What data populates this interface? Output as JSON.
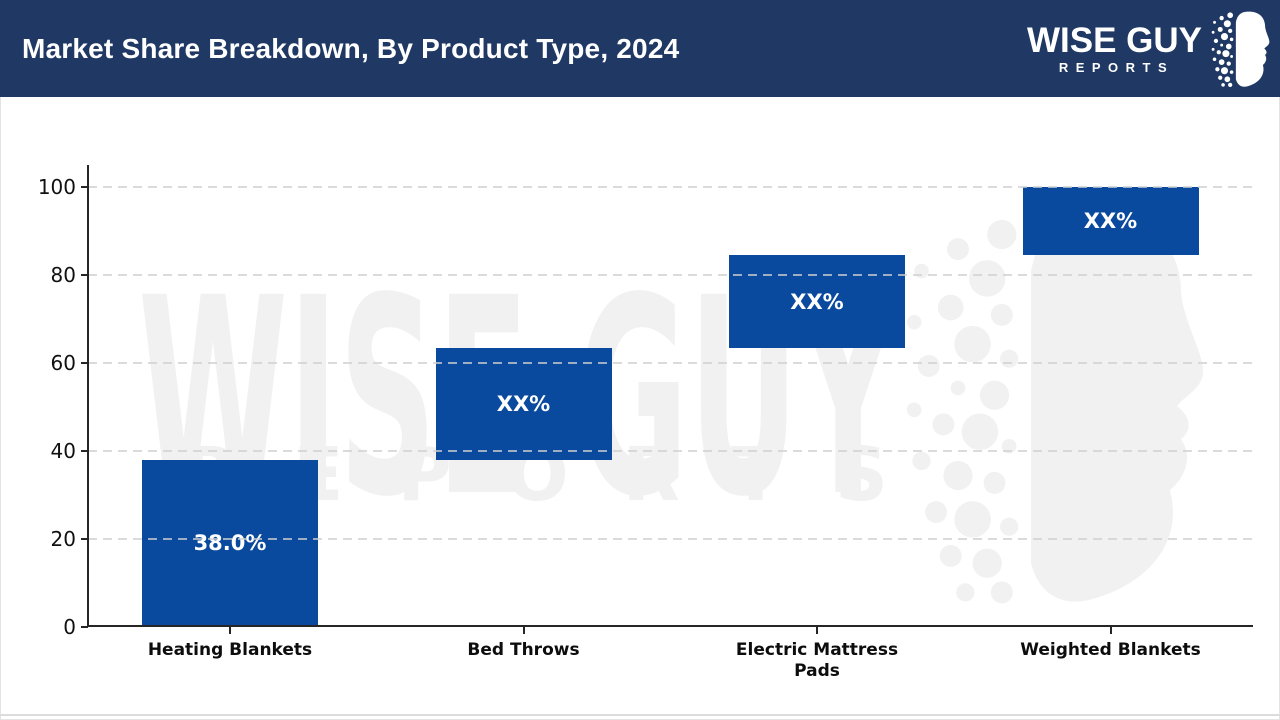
{
  "header": {
    "title": "Market Share Breakdown, By Product Type, 2024",
    "bg_color": "#203864",
    "logo": {
      "line1": "WISE GUY",
      "line2": "REPORTS"
    }
  },
  "watermark": {
    "line1": "WISE GUY",
    "line2": "REPORTS",
    "color": "#f1f1f1"
  },
  "chart_data": {
    "type": "bar",
    "subtype": "waterfall",
    "title": "Market Share Breakdown, By Product Type, 2024",
    "categories": [
      "Heating Blankets",
      "Bed Throws",
      "Electric Mattress Pads",
      "Weighted Blankets"
    ],
    "bars": [
      {
        "category": "Heating Blankets",
        "start": 0,
        "end": 38,
        "value": 38.0,
        "label": "38.0%"
      },
      {
        "category": "Bed Throws",
        "start": 38,
        "end": 63.4,
        "value": null,
        "label": "XX%"
      },
      {
        "category": "Electric Mattress Pads",
        "start": 63.4,
        "end": 84.5,
        "value": null,
        "label": "XX%"
      },
      {
        "category": "Weighted Blankets",
        "start": 84.5,
        "end": 100,
        "value": null,
        "label": "XX%"
      }
    ],
    "xlabel": "",
    "ylabel": "",
    "ylim": [
      0,
      105
    ],
    "yticks": [
      0,
      20,
      40,
      60,
      80,
      100
    ],
    "grid": {
      "axis": "y",
      "style": "dashed",
      "on_top_of_bars": true,
      "color": "#cfcfcf"
    },
    "legend": "none",
    "bar_color": "#0a4a9e",
    "bar_label_color": "#ffffff",
    "axis_color": "#262626"
  }
}
